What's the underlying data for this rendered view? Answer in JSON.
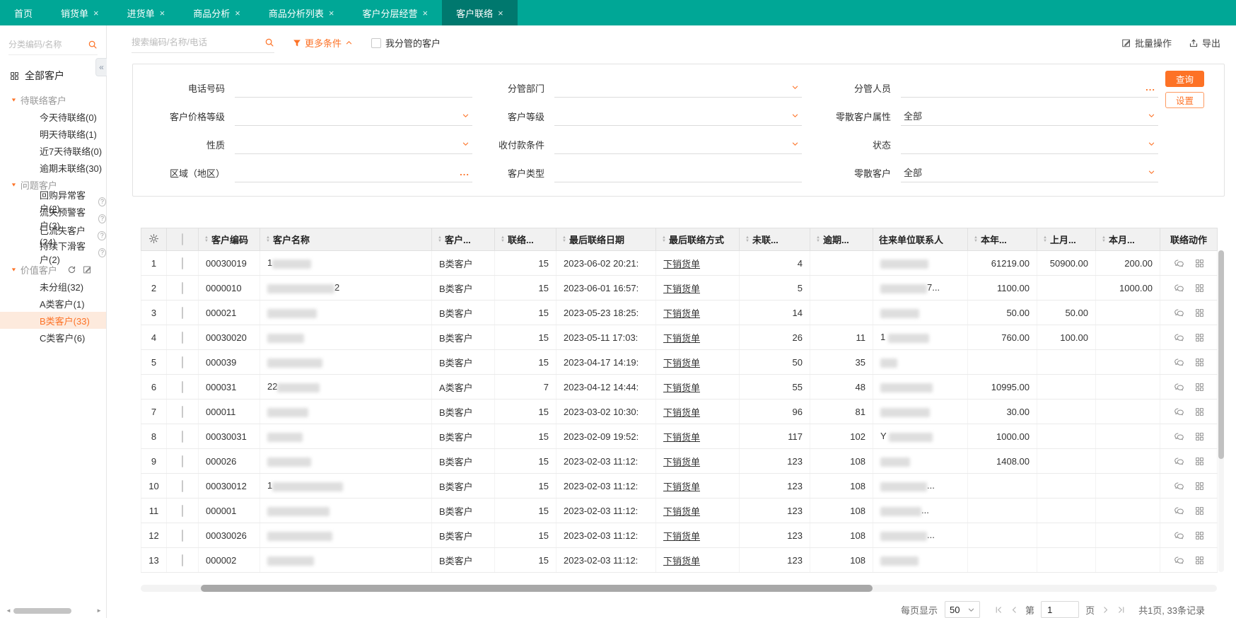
{
  "colors": {
    "accent": "#fd7226",
    "tabbar": "#00a796",
    "tabbar_active": "#00786e"
  },
  "tabs": [
    {
      "label": "首页",
      "closable": false,
      "active": false
    },
    {
      "label": "销货单",
      "closable": true,
      "active": false
    },
    {
      "label": "进货单",
      "closable": true,
      "active": false
    },
    {
      "label": "商品分析",
      "closable": true,
      "active": false
    },
    {
      "label": "商品分析列表",
      "closable": true,
      "active": false
    },
    {
      "label": "客户分层经营",
      "closable": true,
      "active": false
    },
    {
      "label": "客户联络",
      "closable": true,
      "active": true
    }
  ],
  "sidebar": {
    "search_placeholder": "分类编码/名称",
    "collapse_glyph": "«",
    "all_customers": "全部客户",
    "tree": [
      {
        "type": "parent",
        "label": "待联络客户"
      },
      {
        "type": "child",
        "label": "今天待联络(0)"
      },
      {
        "type": "child",
        "label": "明天待联络(1)"
      },
      {
        "type": "child",
        "label": "近7天待联络(0)"
      },
      {
        "type": "child",
        "label": "逾期未联络(30)"
      },
      {
        "type": "parent",
        "label": "问题客户"
      },
      {
        "type": "child",
        "label": "回购异常客户(2)",
        "help": true
      },
      {
        "type": "child",
        "label": "流失预警客户(3)",
        "help": true
      },
      {
        "type": "child",
        "label": "已流失客户(24)",
        "help": true
      },
      {
        "type": "child",
        "label": "持续下滑客户(2)",
        "help": true
      },
      {
        "type": "parent",
        "label": "价值客户",
        "tools": true
      },
      {
        "type": "child",
        "label": "未分组(32)"
      },
      {
        "type": "child",
        "label": "A类客户(1)"
      },
      {
        "type": "child",
        "label": "B类客户(33)",
        "selected": true
      },
      {
        "type": "child",
        "label": "C类客户(6)"
      }
    ]
  },
  "toolbar": {
    "search_placeholder": "搜索编码/名称/电话",
    "more_label": "更多条件",
    "my_customers_label": "我分管的客户",
    "batch_label": "批量操作",
    "export_label": "导出"
  },
  "filters": {
    "query_label": "查询",
    "settings_label": "设置",
    "fields": [
      {
        "label": "电话号码",
        "value": "",
        "control": "input"
      },
      {
        "label": "分管部门",
        "value": "",
        "control": "select"
      },
      {
        "label": "分管人员",
        "value": "",
        "control": "ellipsis"
      },
      {
        "label": "客户价格等级",
        "value": "",
        "control": "select"
      },
      {
        "label": "客户等级",
        "value": "",
        "control": "select"
      },
      {
        "label": "零散客户属性",
        "value": "全部",
        "control": "select"
      },
      {
        "label": "性质",
        "value": "",
        "control": "select"
      },
      {
        "label": "收付款条件",
        "value": "",
        "control": "select"
      },
      {
        "label": "状态",
        "value": "",
        "control": "select"
      },
      {
        "label": "区域（地区）",
        "value": "",
        "control": "ellipsis"
      },
      {
        "label": "客户类型",
        "value": "",
        "control": "input"
      },
      {
        "label": "零散客户",
        "value": "全部",
        "control": "select"
      }
    ]
  },
  "table": {
    "columns": [
      {
        "label": "",
        "type": "gear",
        "sortable": false
      },
      {
        "label": "",
        "type": "checkbox",
        "sortable": false
      },
      {
        "label": "客户编码",
        "sortable": true
      },
      {
        "label": "客户名称",
        "sortable": true
      },
      {
        "label": "客户...",
        "sortable": true
      },
      {
        "label": "联络...",
        "sortable": true
      },
      {
        "label": "最后联络日期",
        "sortable": true
      },
      {
        "label": "最后联络方式",
        "sortable": true
      },
      {
        "label": "未联...",
        "sortable": true
      },
      {
        "label": "逾期...",
        "sortable": true
      },
      {
        "label": "往来单位联系人",
        "sortable": false
      },
      {
        "label": "本年...",
        "sortable": true
      },
      {
        "label": "上月...",
        "sortable": true
      },
      {
        "label": "本月...",
        "sortable": true
      },
      {
        "label": "联络动作",
        "sortable": false
      }
    ],
    "link_label": "下销货单",
    "rows": [
      {
        "code": "00030019",
        "name_prefix": "1",
        "name_suffix": "",
        "grade": "B类客户",
        "contacts": "15",
        "last_date": "2023-06-02 20:21:",
        "not_contacted": "4",
        "overdue": "",
        "contact_prefix": "",
        "contact_suffix": "",
        "year": "61219.00",
        "last_month": "50900.00",
        "this_month": "200.00"
      },
      {
        "code": "0000010",
        "name_prefix": "",
        "name_suffix": "2",
        "grade": "B类客户",
        "contacts": "15",
        "last_date": "2023-06-01 16:57:",
        "not_contacted": "5",
        "overdue": "",
        "contact_prefix": "",
        "contact_suffix": "7...",
        "year": "1100.00",
        "last_month": "",
        "this_month": "1000.00"
      },
      {
        "code": "000021",
        "name_prefix": "",
        "name_suffix": "",
        "grade": "B类客户",
        "contacts": "15",
        "last_date": "2023-05-23 18:25:",
        "not_contacted": "14",
        "overdue": "",
        "contact_prefix": "",
        "contact_suffix": "",
        "year": "50.00",
        "last_month": "50.00",
        "this_month": ""
      },
      {
        "code": "00030020",
        "name_prefix": "",
        "name_suffix": "",
        "grade": "B类客户",
        "contacts": "15",
        "last_date": "2023-05-11 17:03:",
        "not_contacted": "26",
        "overdue": "11",
        "contact_prefix": "1",
        "contact_suffix": "",
        "year": "760.00",
        "last_month": "100.00",
        "this_month": ""
      },
      {
        "code": "000039",
        "name_prefix": "",
        "name_suffix": "",
        "grade": "B类客户",
        "contacts": "15",
        "last_date": "2023-04-17 14:19:",
        "not_contacted": "50",
        "overdue": "35",
        "contact_prefix": "",
        "contact_suffix": "",
        "year": "",
        "last_month": "",
        "this_month": ""
      },
      {
        "code": "000031",
        "name_prefix": "22",
        "name_suffix": "",
        "grade": "A类客户",
        "contacts": "7",
        "last_date": "2023-04-12 14:44:",
        "not_contacted": "55",
        "overdue": "48",
        "contact_prefix": "",
        "contact_suffix": "",
        "year": "10995.00",
        "last_month": "",
        "this_month": ""
      },
      {
        "code": "000011",
        "name_prefix": "",
        "name_suffix": "",
        "grade": "B类客户",
        "contacts": "15",
        "last_date": "2023-03-02 10:30:",
        "not_contacted": "96",
        "overdue": "81",
        "contact_prefix": "",
        "contact_suffix": "",
        "year": "30.00",
        "last_month": "",
        "this_month": ""
      },
      {
        "code": "00030031",
        "name_prefix": "",
        "name_suffix": "",
        "grade": "B类客户",
        "contacts": "15",
        "last_date": "2023-02-09 19:52:",
        "not_contacted": "117",
        "overdue": "102",
        "contact_prefix": "Y",
        "contact_suffix": "",
        "year": "1000.00",
        "last_month": "",
        "this_month": ""
      },
      {
        "code": "000026",
        "name_prefix": "",
        "name_suffix": "",
        "grade": "B类客户",
        "contacts": "15",
        "last_date": "2023-02-03 11:12:",
        "not_contacted": "123",
        "overdue": "108",
        "contact_prefix": "",
        "contact_suffix": "",
        "year": "1408.00",
        "last_month": "",
        "this_month": ""
      },
      {
        "code": "00030012",
        "name_prefix": "1",
        "name_suffix": "",
        "grade": "B类客户",
        "contacts": "15",
        "last_date": "2023-02-03 11:12:",
        "not_contacted": "123",
        "overdue": "108",
        "contact_prefix": "",
        "contact_suffix": "...",
        "year": "",
        "last_month": "",
        "this_month": ""
      },
      {
        "code": "000001",
        "name_prefix": "",
        "name_suffix": "",
        "grade": "B类客户",
        "contacts": "15",
        "last_date": "2023-02-03 11:12:",
        "not_contacted": "123",
        "overdue": "108",
        "contact_prefix": "",
        "contact_suffix": "...",
        "year": "",
        "last_month": "",
        "this_month": ""
      },
      {
        "code": "00030026",
        "name_prefix": "",
        "name_suffix": "",
        "grade": "B类客户",
        "contacts": "15",
        "last_date": "2023-02-03 11:12:",
        "not_contacted": "123",
        "overdue": "108",
        "contact_prefix": "",
        "contact_suffix": "...",
        "year": "",
        "last_month": "",
        "this_month": ""
      },
      {
        "code": "000002",
        "name_prefix": "",
        "name_suffix": "",
        "grade": "B类客户",
        "contacts": "15",
        "last_date": "2023-02-03 11:12:",
        "not_contacted": "123",
        "overdue": "108",
        "contact_prefix": "",
        "contact_suffix": "",
        "year": "",
        "last_month": "",
        "this_month": ""
      }
    ]
  },
  "pagination": {
    "per_page_label": "每页显示",
    "per_page": "50",
    "jump_prefix": "第",
    "page": "1",
    "jump_suffix": "页",
    "total": "共1页, 33条记录"
  }
}
